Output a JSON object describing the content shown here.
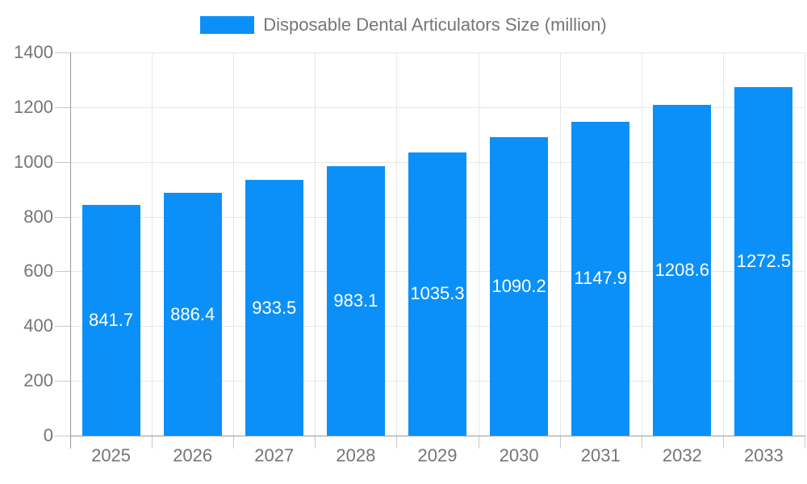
{
  "legend": {
    "label": "Disposable Dental Articulators Size (million)"
  },
  "chart_data": {
    "type": "bar",
    "title": "Disposable Dental Articulators Size (million)",
    "categories": [
      "2025",
      "2026",
      "2027",
      "2028",
      "2029",
      "2030",
      "2031",
      "2032",
      "2033"
    ],
    "values": [
      841.7,
      886.4,
      933.5,
      983.1,
      1035.3,
      1090.2,
      1147.9,
      1208.6,
      1272.5
    ],
    "value_labels": [
      "841.7",
      "886.4",
      "933.5",
      "983.1",
      "1035.3",
      "1090.2",
      "1147.9",
      "1208.6",
      "1272.5"
    ],
    "xlabel": "",
    "ylabel": "",
    "ylim": [
      0,
      1400
    ],
    "yticks": [
      0,
      200,
      400,
      600,
      800,
      1000,
      1200,
      1400
    ],
    "grid": true,
    "legend_position": "top",
    "colors": {
      "bar": "#0b90f9",
      "grid": "#e6e6e6",
      "axis_line": "#999999",
      "tick": "#c9c9c9",
      "axis_text": "#757575",
      "value_label": "#ffffff",
      "background": "#ffffff"
    }
  }
}
